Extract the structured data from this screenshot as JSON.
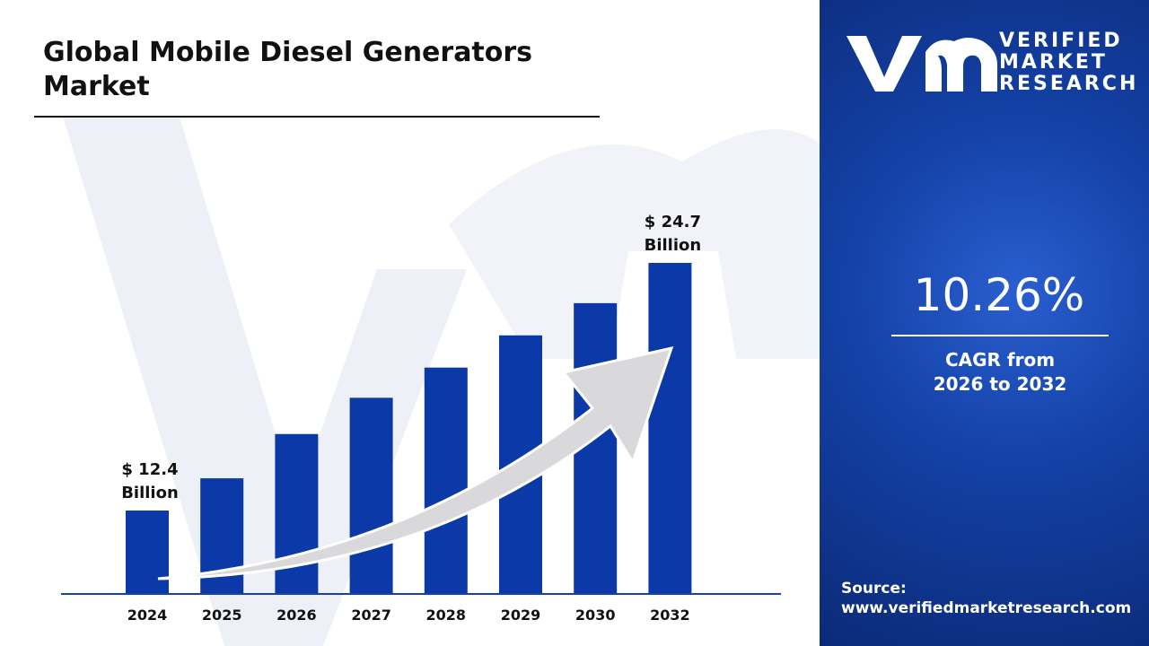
{
  "chart_data": {
    "type": "bar",
    "title": "Global Mobile Diesel Generators Market",
    "categories": [
      "2024",
      "2025",
      "2026",
      "2027",
      "2028",
      "2029",
      "2030",
      "2032"
    ],
    "values": [
      12.4,
      14.0,
      16.2,
      18.0,
      19.5,
      21.1,
      22.7,
      24.7
    ],
    "value_labels": [
      "$ 12.4 Billion",
      null,
      null,
      null,
      null,
      null,
      null,
      "$ 24.7 Billion"
    ],
    "color": "#0b3aa8"
  },
  "logo": [
    "VERIFIED",
    "MARKET",
    "RESEARCH"
  ],
  "cagr": {
    "value": "10.26%",
    "label": "CAGR from 2026 to 2032"
  },
  "source": {
    "label": "Source:",
    "url": "www.verifiedmarketresearch.com"
  }
}
